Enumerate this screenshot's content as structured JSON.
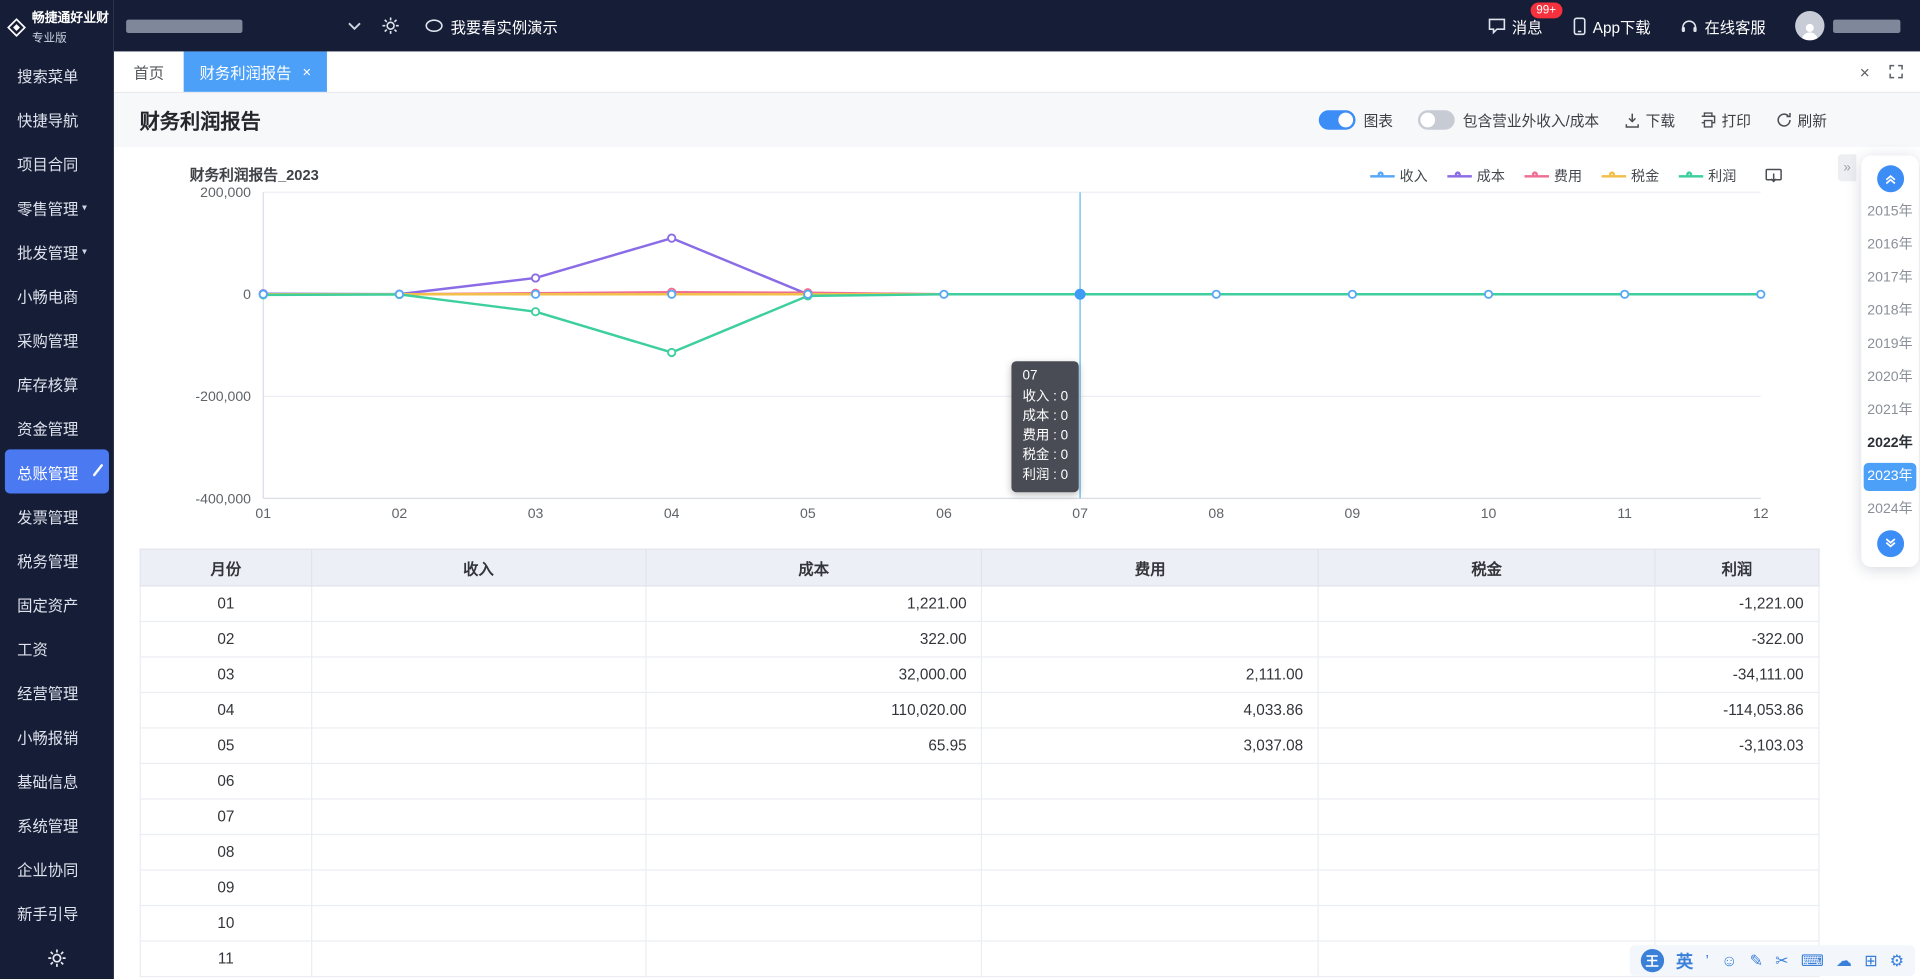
{
  "app": {
    "logo_line1": "畅捷通好业财",
    "logo_line2": "专业版"
  },
  "topbar": {
    "demo_text": "我要看实例演示",
    "messages": {
      "label": "消息",
      "badge": "99+"
    },
    "app_download": "App下载",
    "online_support": "在线客服"
  },
  "sidebar": {
    "items": [
      {
        "label": "搜索菜单"
      },
      {
        "label": "快捷导航"
      },
      {
        "label": "项目合同"
      },
      {
        "label": "零售管理",
        "expandable": true
      },
      {
        "label": "批发管理",
        "expandable": true
      },
      {
        "label": "小畅电商"
      },
      {
        "label": "采购管理"
      },
      {
        "label": "库存核算"
      },
      {
        "label": "资金管理"
      },
      {
        "label": "总账管理",
        "active": true
      },
      {
        "label": "发票管理"
      },
      {
        "label": "税务管理"
      },
      {
        "label": "固定资产"
      },
      {
        "label": "工资"
      },
      {
        "label": "经营管理"
      },
      {
        "label": "小畅报销"
      },
      {
        "label": "基础信息"
      },
      {
        "label": "系统管理"
      },
      {
        "label": "企业协同"
      },
      {
        "label": "新手引导"
      }
    ]
  },
  "tabs": [
    {
      "label": "首页",
      "active": false,
      "closable": false
    },
    {
      "label": "财务利润报告",
      "active": true,
      "closable": true
    }
  ],
  "toolbar": {
    "page_title": "财务利润报告",
    "chart_toggle": {
      "label": "图表",
      "on": true
    },
    "include_toggle": {
      "label": "包含营业外收入/成本",
      "on": false
    },
    "download": "下载",
    "print": "打印",
    "refresh": "刷新"
  },
  "chart_data": {
    "type": "line",
    "title": "财务利润报告_2023",
    "categories": [
      "01",
      "02",
      "03",
      "04",
      "05",
      "06",
      "07",
      "08",
      "09",
      "10",
      "11",
      "12"
    ],
    "ylim": [
      -400000,
      200000
    ],
    "yticks": [
      200000,
      0,
      -200000,
      -400000
    ],
    "ytick_labels": [
      "200,000",
      "0",
      "-200,000",
      "-400,000"
    ],
    "legend_position": "top-right",
    "grid": true,
    "series": [
      {
        "name": "收入",
        "color": "#57a8f6",
        "values": [
          0,
          0,
          0,
          0,
          0,
          0,
          0,
          0,
          0,
          0,
          0,
          0
        ]
      },
      {
        "name": "成本",
        "color": "#8a6ce6",
        "values": [
          1221,
          322,
          32000,
          110020,
          65.95,
          0,
          0,
          0,
          0,
          0,
          0,
          0
        ]
      },
      {
        "name": "费用",
        "color": "#ef6e94",
        "values": [
          0,
          0,
          2111,
          4033.86,
          3037.08,
          0,
          0,
          0,
          0,
          0,
          0,
          0
        ]
      },
      {
        "name": "税金",
        "color": "#f2c04a",
        "values": [
          0,
          0,
          0,
          0,
          0,
          0,
          0,
          0,
          0,
          0,
          0,
          0
        ]
      },
      {
        "name": "利润",
        "color": "#3ecf9e",
        "values": [
          -1221,
          -322,
          -34111,
          -114053.86,
          -3103.03,
          0,
          0,
          0,
          0,
          0,
          0,
          0
        ]
      }
    ],
    "tooltip": {
      "title": "07",
      "highlight_index": 6,
      "rows": [
        {
          "label": "收入",
          "value": "0"
        },
        {
          "label": "成本",
          "value": "0"
        },
        {
          "label": "费用",
          "value": "0"
        },
        {
          "label": "税金",
          "value": "0"
        },
        {
          "label": "利润",
          "value": "0"
        }
      ]
    }
  },
  "table": {
    "columns": [
      "月份",
      "收入",
      "成本",
      "费用",
      "税金",
      "利润"
    ],
    "rows": [
      [
        "01",
        "",
        "1,221.00",
        "",
        "",
        "-1,221.00"
      ],
      [
        "02",
        "",
        "322.00",
        "",
        "",
        "-322.00"
      ],
      [
        "03",
        "",
        "32,000.00",
        "2,111.00",
        "",
        "-34,111.00"
      ],
      [
        "04",
        "",
        "110,020.00",
        "4,033.86",
        "",
        "-114,053.86"
      ],
      [
        "05",
        "",
        "65.95",
        "3,037.08",
        "",
        "-3,103.03"
      ],
      [
        "06",
        "",
        "",
        "",
        "",
        ""
      ],
      [
        "07",
        "",
        "",
        "",
        "",
        ""
      ],
      [
        "08",
        "",
        "",
        "",
        "",
        ""
      ],
      [
        "09",
        "",
        "",
        "",
        "",
        ""
      ],
      [
        "10",
        "",
        "",
        "",
        "",
        ""
      ],
      [
        "11",
        "",
        "",
        "",
        "",
        ""
      ]
    ]
  },
  "year_panel": {
    "years": [
      {
        "label": "2015年"
      },
      {
        "label": "2016年"
      },
      {
        "label": "2017年"
      },
      {
        "label": "2018年"
      },
      {
        "label": "2019年"
      },
      {
        "label": "2020年"
      },
      {
        "label": "2021年"
      },
      {
        "label": "2022年",
        "emphasis": true
      },
      {
        "label": "2023年",
        "selected": true
      },
      {
        "label": "2024年"
      }
    ]
  },
  "ime_bar": {
    "logo": "王",
    "mode": "英",
    "tools": [
      {
        "name": "punctuation-icon",
        "glyph": "’"
      },
      {
        "name": "emoji-icon",
        "glyph": "☺"
      },
      {
        "name": "handwriting-icon",
        "glyph": "✎"
      },
      {
        "name": "screenshot-icon",
        "glyph": "✂"
      },
      {
        "name": "keyboard-icon",
        "glyph": "⌨"
      },
      {
        "name": "cloud-icon",
        "glyph": "☁"
      },
      {
        "name": "toolbox-icon",
        "glyph": "⊞"
      },
      {
        "name": "ime-settings-icon",
        "glyph": "⚙"
      }
    ]
  }
}
